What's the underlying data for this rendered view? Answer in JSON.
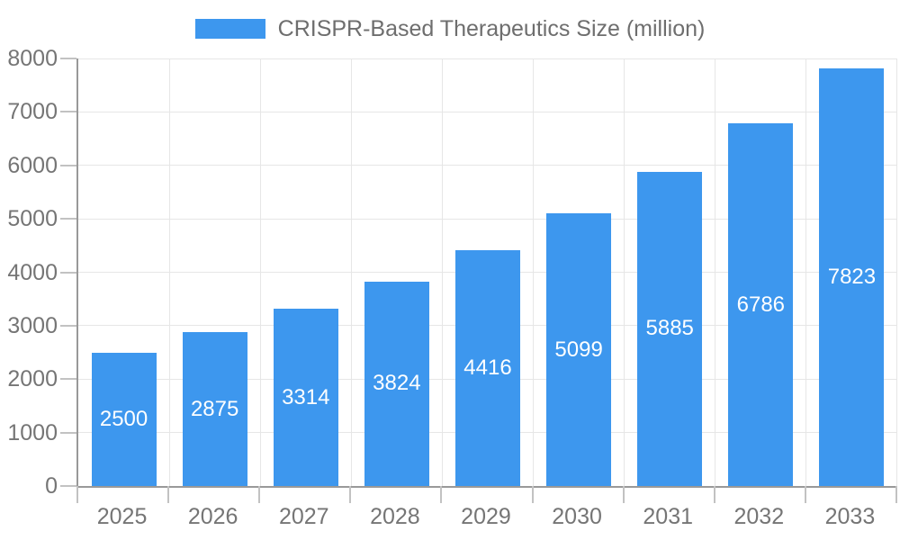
{
  "chart_data": {
    "type": "bar",
    "title": "CRISPR-Based Therapeutics Size (million)",
    "legend": {
      "label": "CRISPR-Based Therapeutics Size (million)",
      "position": "top"
    },
    "categories": [
      "2025",
      "2026",
      "2027",
      "2028",
      "2029",
      "2030",
      "2031",
      "2032",
      "2033"
    ],
    "values": [
      2500,
      2875,
      3314,
      3824,
      4416,
      5099,
      5885,
      6786,
      7823
    ],
    "xlabel": "",
    "ylabel": "",
    "ylim": [
      0,
      8000
    ],
    "ytick_step": 1000,
    "y_tick_labels": [
      "0",
      "1000",
      "2000",
      "3000",
      "4000",
      "5000",
      "6000",
      "7000",
      "8000"
    ],
    "grid": true,
    "colors": {
      "bar": "#3d97ee",
      "bar_label": "#ffffff",
      "gridline": "#e6e6e6",
      "axis_line": "#999999",
      "axis_text": "#757575",
      "legend_text": "#6e6e6e"
    }
  }
}
